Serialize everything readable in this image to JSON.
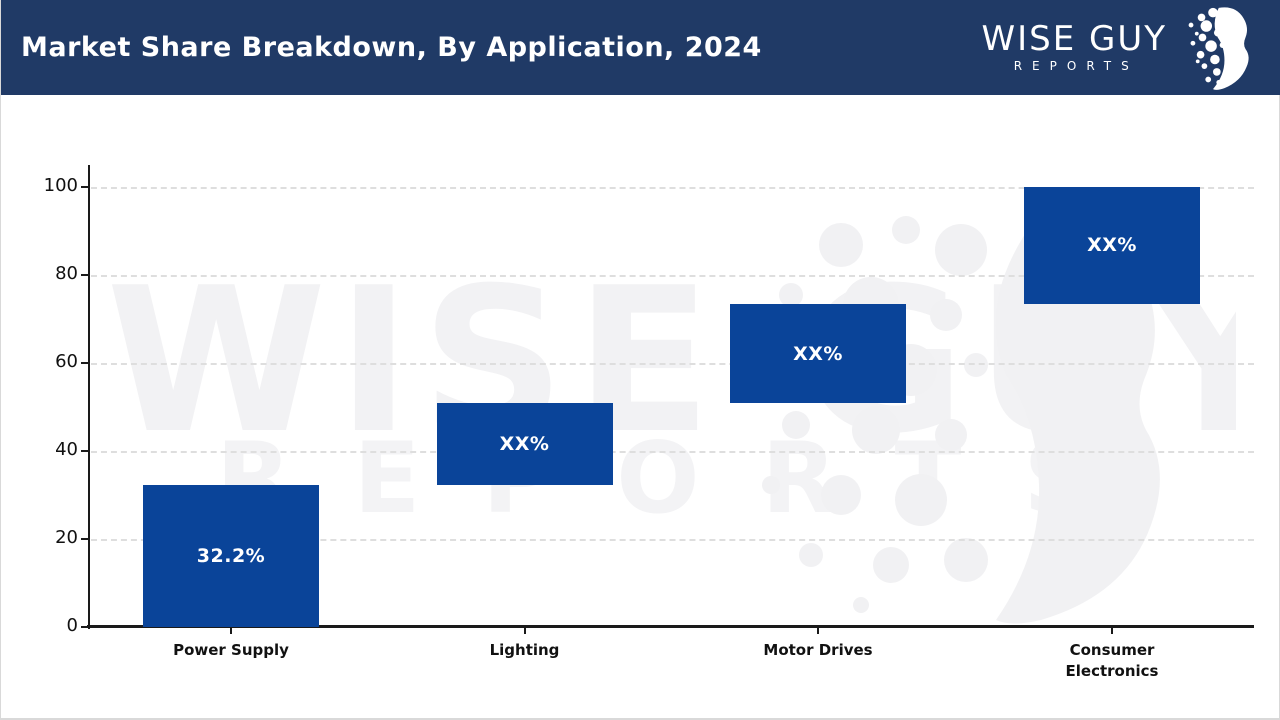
{
  "header": {
    "title": "Market Share Breakdown, By Application, 2024",
    "logo": {
      "line1": "WISE GUY",
      "line2": "REPORTS"
    }
  },
  "watermark": {
    "line1": "WISE GUY",
    "line2": "REPORTS"
  },
  "colors": {
    "header_bg": "#203a66",
    "bar_blue": "#0a4499",
    "watermark_gray": "#f2f2f4",
    "grid_gray": "#dedede",
    "axis_black": "#1a1a1a",
    "title_text": "#ffffff",
    "bar_label_text": "#ffffff"
  },
  "chart_data": {
    "type": "bar",
    "subtype": "waterfall",
    "title": "Market Share Breakdown, By Application, 2024",
    "categories": [
      "Power Supply",
      "Lighting",
      "Motor Drives",
      "Consumer Electronics"
    ],
    "segments": [
      {
        "category": "Power Supply",
        "start": 0,
        "end": 32.2,
        "label": "32.2%"
      },
      {
        "category": "Lighting",
        "start": 32.2,
        "end": 50.8,
        "label": "XX%"
      },
      {
        "category": "Motor Drives",
        "start": 50.8,
        "end": 73.3,
        "label": "XX%"
      },
      {
        "category": "Consumer Electronics",
        "start": 73.3,
        "end": 100,
        "label": "XX%"
      }
    ],
    "yticks": [
      0,
      20,
      40,
      60,
      80,
      100
    ],
    "ylim": [
      0,
      105
    ],
    "xlabel": "",
    "ylabel": "",
    "grid": "horizontal-dashed",
    "legend": "none"
  }
}
